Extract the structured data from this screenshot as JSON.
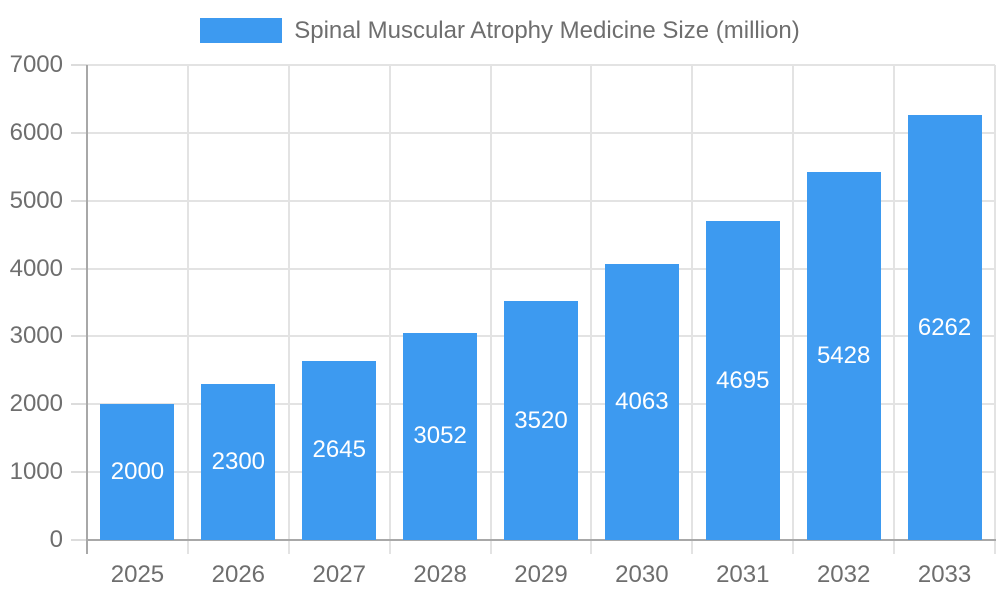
{
  "chart_data": {
    "type": "bar",
    "title": "Spinal Muscular Atrophy Medicine Size (million)",
    "series_name": "Spinal Muscular Atrophy Medicine Size (million)",
    "categories": [
      "2025",
      "2026",
      "2027",
      "2028",
      "2029",
      "2030",
      "2031",
      "2032",
      "2033"
    ],
    "values": [
      2000,
      2300,
      2645,
      3052,
      3520,
      4063,
      4695,
      5428,
      6262
    ],
    "data_labels": [
      "2000",
      "2300",
      "2645",
      "3052",
      "3520",
      "4063",
      "4695",
      "5428",
      "6262"
    ],
    "xlabel": "",
    "ylabel": "",
    "ylim": [
      0,
      7000
    ],
    "ytick_step": 1000,
    "yticks": [
      "0",
      "1000",
      "2000",
      "3000",
      "4000",
      "5000",
      "6000",
      "7000"
    ],
    "grid": "on",
    "legend_position": "top"
  },
  "colors": {
    "bar": "#3d9af0",
    "grid": "#e3e3e3",
    "axis": "#a8a8a8",
    "text": "#6e6e6e",
    "bar_label": "#ffffff",
    "background": "#ffffff"
  }
}
